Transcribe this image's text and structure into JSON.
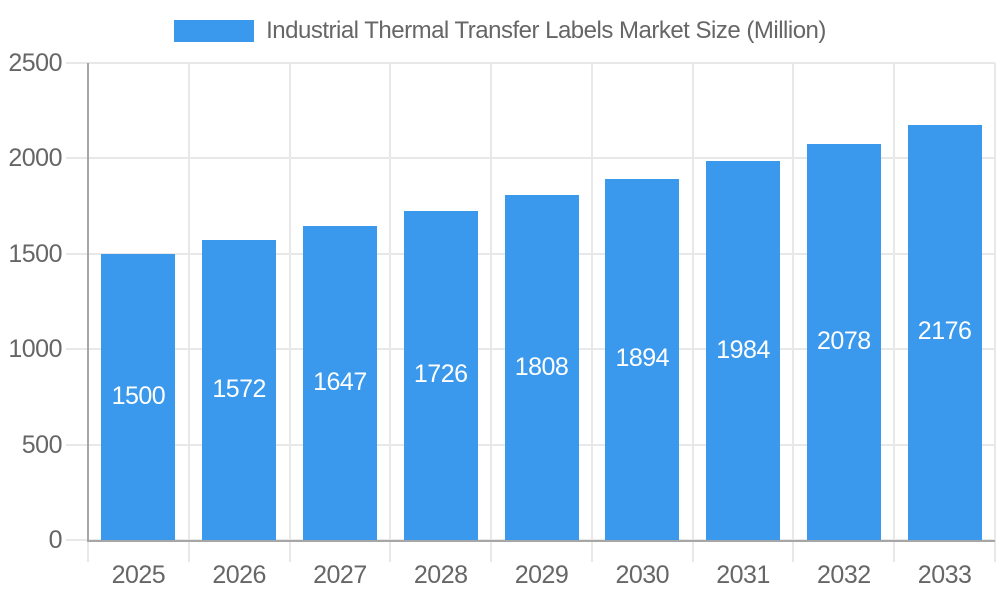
{
  "legend": {
    "label": "Industrial Thermal Transfer Labels Market Size (Million)"
  },
  "chart_data": {
    "type": "bar",
    "title": "Industrial Thermal Transfer Labels Market Size (Million)",
    "categories": [
      "2025",
      "2026",
      "2027",
      "2028",
      "2029",
      "2030",
      "2031",
      "2032",
      "2033"
    ],
    "values": [
      1500,
      1572,
      1647,
      1726,
      1808,
      1894,
      1984,
      2078,
      2176
    ],
    "xlabel": "",
    "ylabel": "",
    "ylim": [
      0,
      2500
    ],
    "y_ticks": [
      0,
      500,
      1000,
      1500,
      2000,
      2500
    ],
    "grid": true,
    "legend_position": "top",
    "colors": {
      "bar": "#3A99EC",
      "value_label": "#ffffff",
      "axis_text": "#666666",
      "grid_line": "#e8e8e8",
      "axis_line": "#a6a6a6"
    }
  }
}
